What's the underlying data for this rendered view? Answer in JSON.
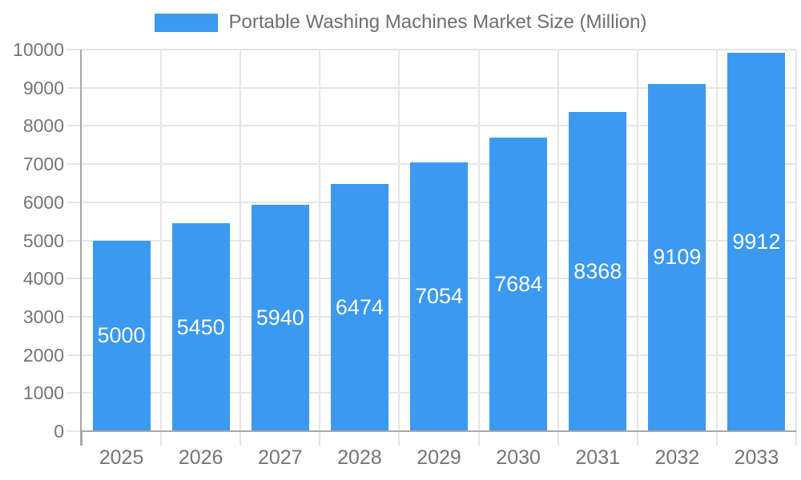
{
  "chart_data": {
    "type": "bar",
    "title": "Portable Washing Machines Market Size (Million)",
    "categories": [
      "2025",
      "2026",
      "2027",
      "2028",
      "2029",
      "2030",
      "2031",
      "2032",
      "2033"
    ],
    "values": [
      5000,
      5450,
      5940,
      6474,
      7054,
      7684,
      8368,
      9109,
      9912
    ],
    "xlabel": "",
    "ylabel": "",
    "ylim": [
      0,
      10000
    ],
    "yticks": [
      0,
      1000,
      2000,
      3000,
      4000,
      5000,
      6000,
      7000,
      8000,
      9000,
      10000
    ],
    "grid": true,
    "legend_position": "top",
    "bar_labels_shown": true,
    "colors": {
      "bar": "#3B99F0",
      "bar_label": "#FFFFFF",
      "grid": "#E5E5E5",
      "axis": "#A8A8A8",
      "tick_label": "#757575",
      "legend_text": "#6E6E6E",
      "background": "#FFFFFF"
    }
  }
}
